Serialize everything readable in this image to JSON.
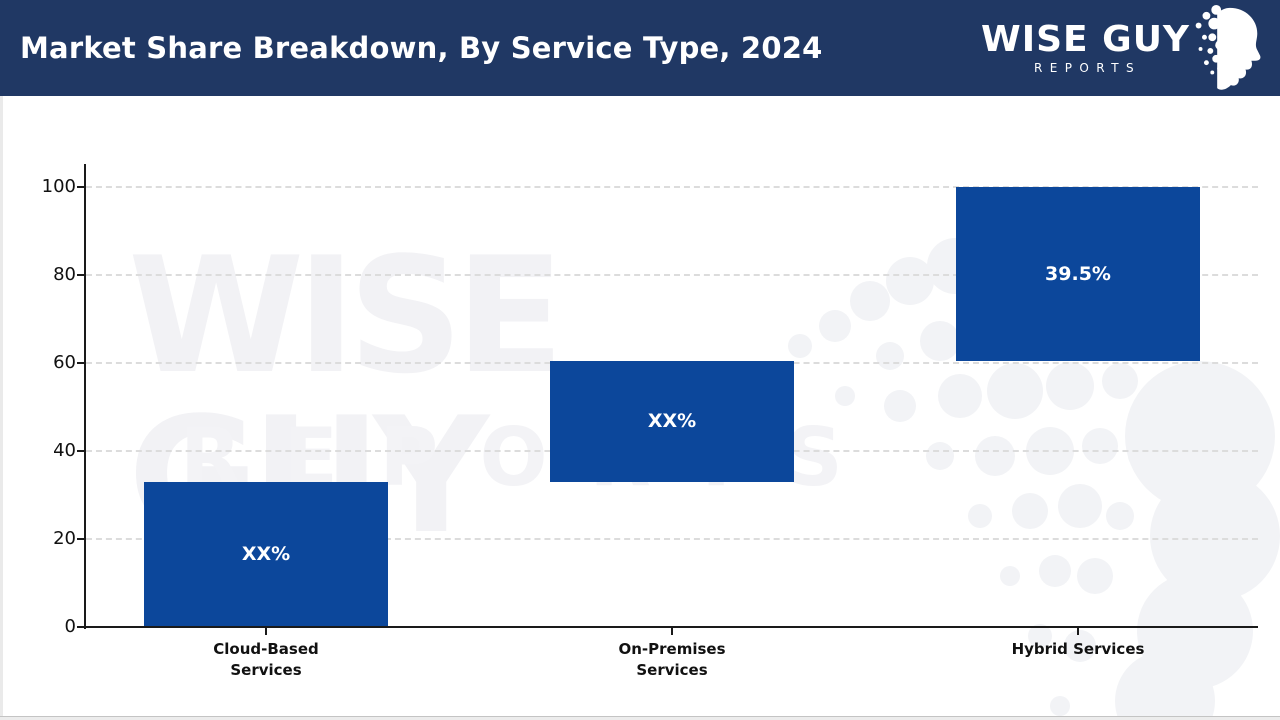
{
  "header": {
    "title": "Market Share Breakdown, By Service Type, 2024",
    "bg_color": "#203864",
    "logo": {
      "name": "WISE GUY",
      "tagline": "REPORTS"
    }
  },
  "watermark": {
    "line1": "WISE GUY",
    "line2": "REPORTS"
  },
  "chart_data": {
    "type": "bar",
    "variant": "waterfall",
    "title": "Market Share Breakdown, By Service Type, 2024",
    "categories": [
      "Cloud-Based\nServices",
      "On-Premises\nServices",
      "Hybrid Services"
    ],
    "segments": [
      {
        "category": "Cloud-Based Services",
        "start": 0,
        "end": 33,
        "value_label": "XX%"
      },
      {
        "category": "On-Premises Services",
        "start": 33,
        "end": 60.5,
        "value_label": "XX%"
      },
      {
        "category": "Hybrid Services",
        "start": 60.5,
        "end": 100,
        "value_label": "39.5%"
      }
    ],
    "ylim": [
      0,
      100
    ],
    "yticks": [
      0,
      20,
      40,
      60,
      80,
      100
    ],
    "grid": "horizontal-dashed",
    "legend_position": "none",
    "colors": {
      "bar": "#0C479B",
      "bar_label": "#FFFFFF",
      "grid": "#DCDCDC",
      "axis": "#1A1A1A",
      "header_bg": "#203864"
    }
  }
}
